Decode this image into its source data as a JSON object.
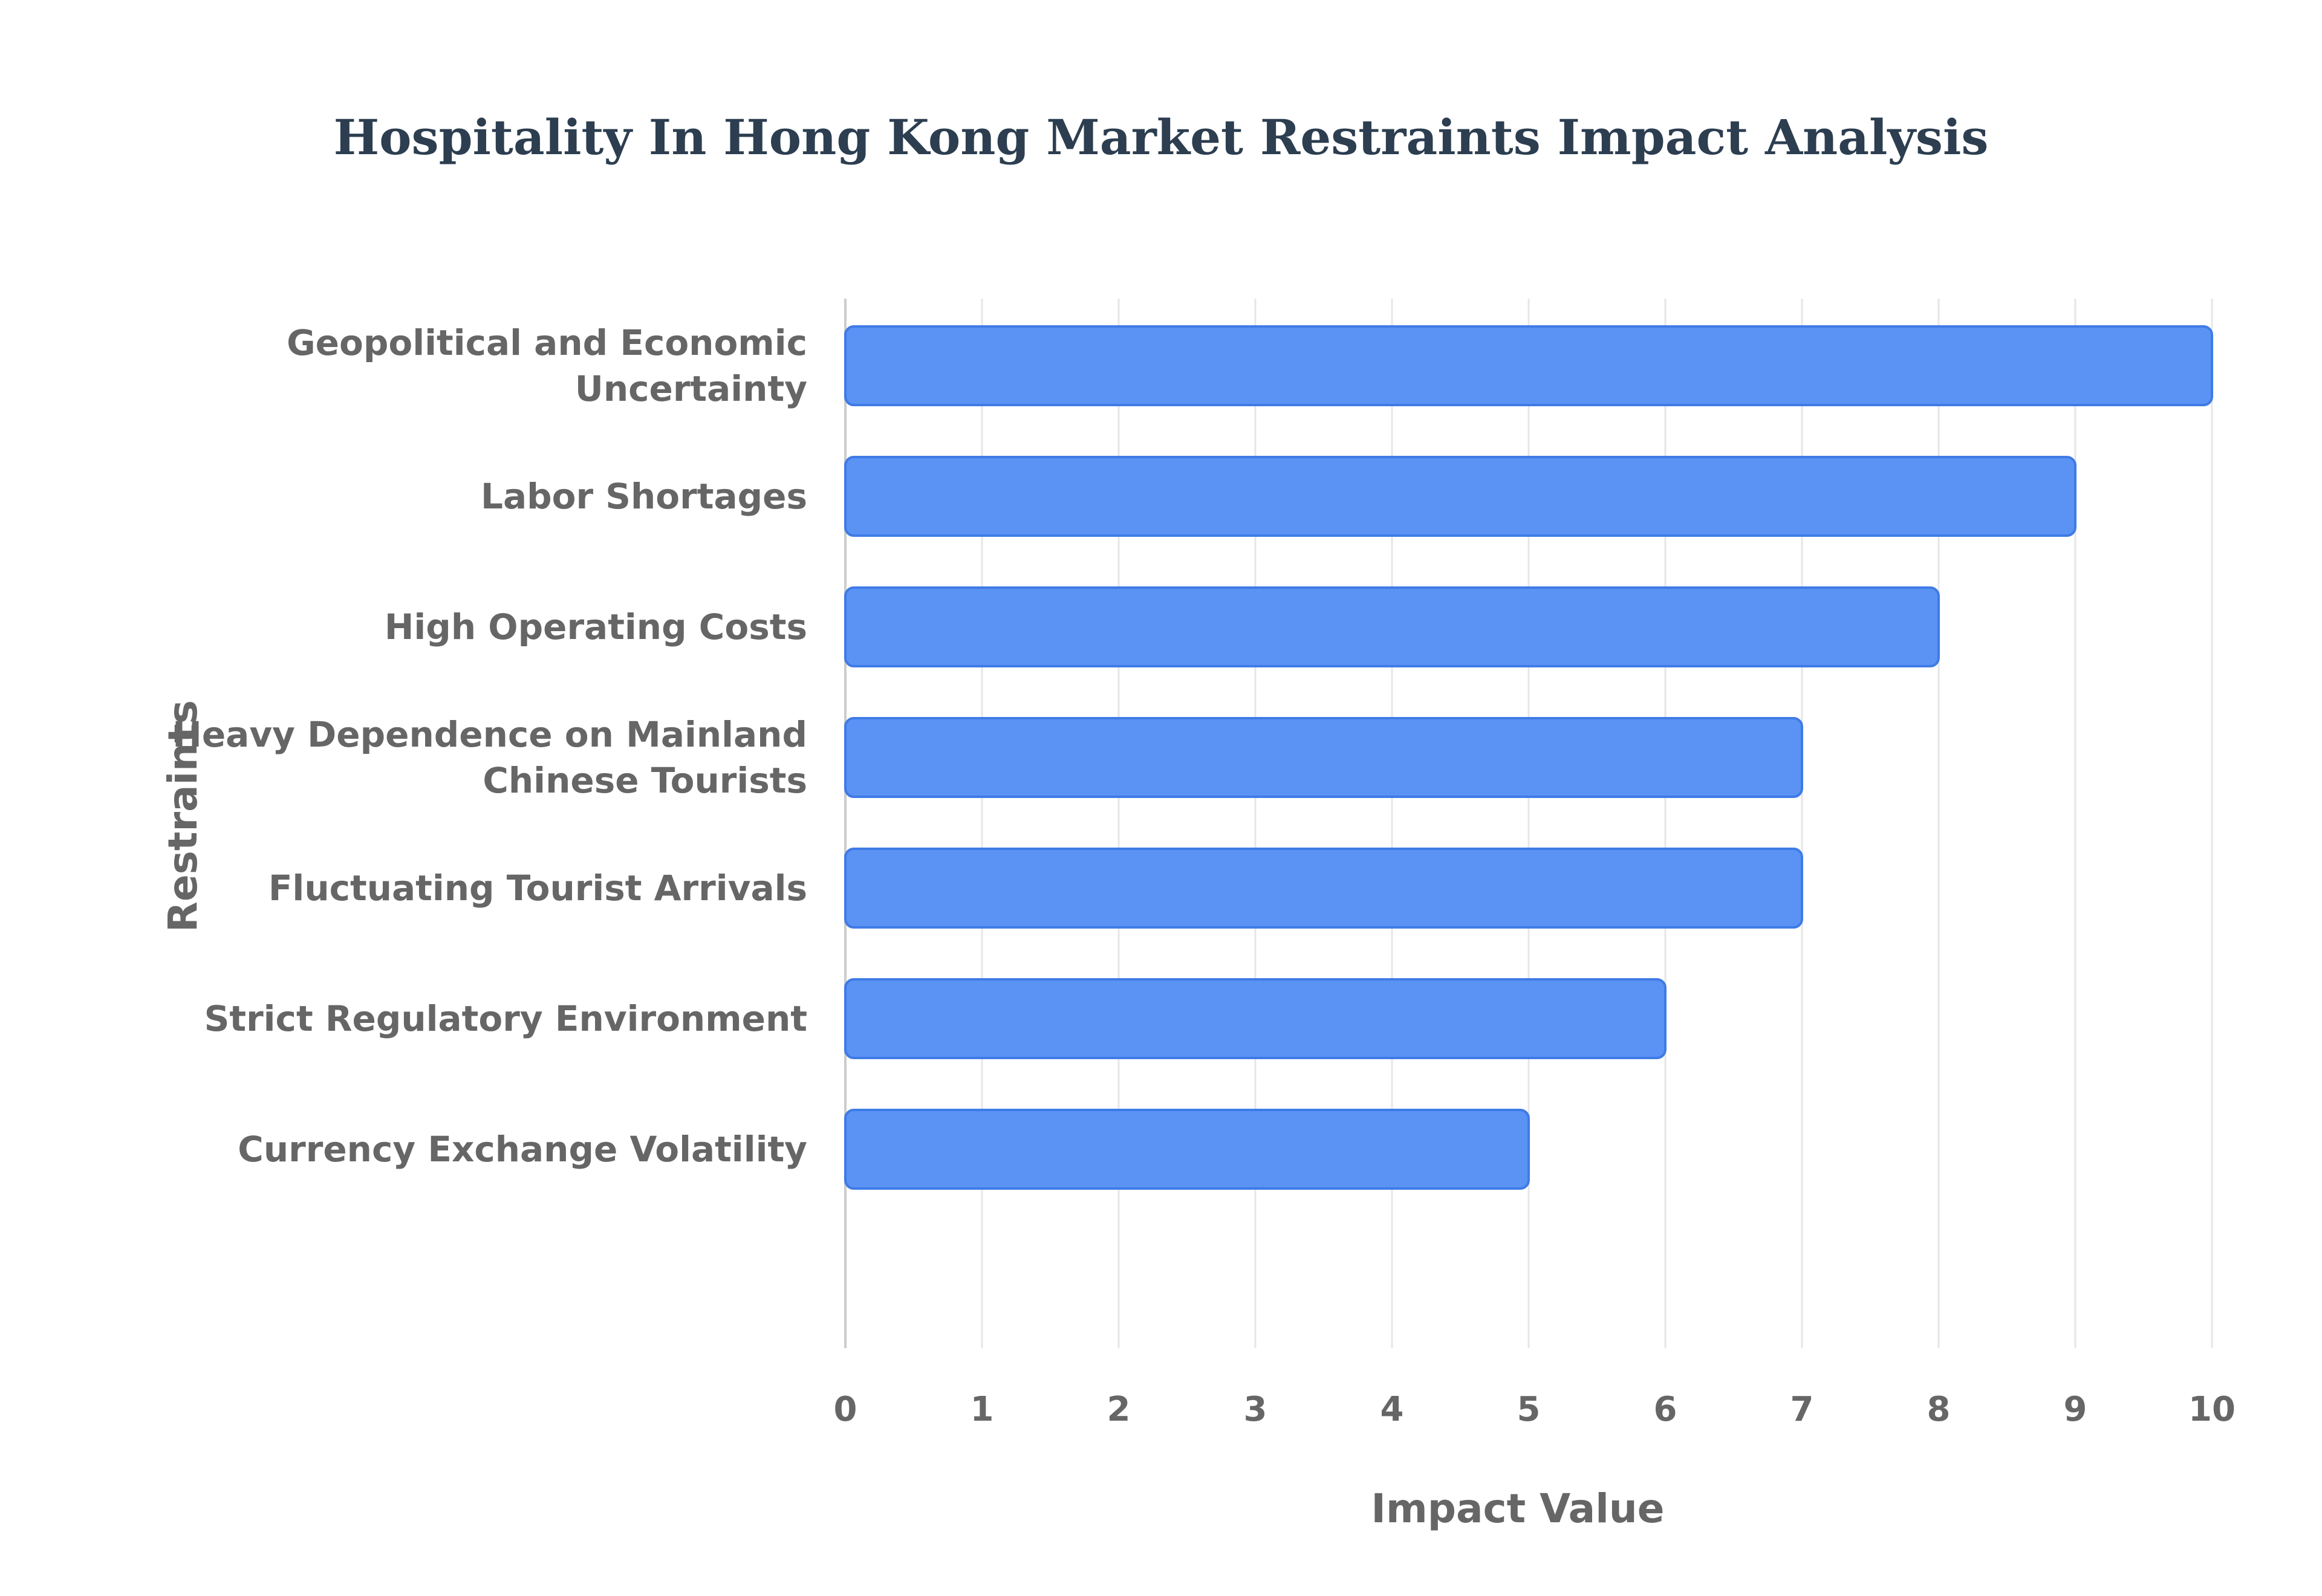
{
  "chart_data": {
    "type": "bar",
    "orientation": "horizontal",
    "title": "Hospitality In Hong Kong Market Restraints Impact Analysis",
    "xlabel": "Impact Value",
    "ylabel": "Restraints",
    "categories": [
      [
        "Geopolitical and Economic",
        "Uncertainty"
      ],
      [
        "Labor Shortages"
      ],
      [
        "High Operating Costs"
      ],
      [
        "Heavy Dependence on Mainland",
        "Chinese Tourists"
      ],
      [
        "Fluctuating Tourist Arrivals"
      ],
      [
        "Strict Regulatory Environment"
      ],
      [
        "Currency Exchange Volatility"
      ]
    ],
    "values": [
      10,
      9,
      8,
      7,
      7,
      6,
      5
    ],
    "xlim": [
      0,
      10
    ],
    "xticks": [
      "0",
      "1",
      "2",
      "3",
      "4",
      "5",
      "6",
      "7",
      "8",
      "9",
      "10"
    ],
    "grid": true,
    "legend": "none",
    "colors": {
      "bar_fill": "#5b93f5",
      "bar_stroke": "#3f7be6",
      "title": "#2c3e50",
      "text": "#666666",
      "grid": "#e6e6e6",
      "axis": "#cccccc"
    }
  }
}
